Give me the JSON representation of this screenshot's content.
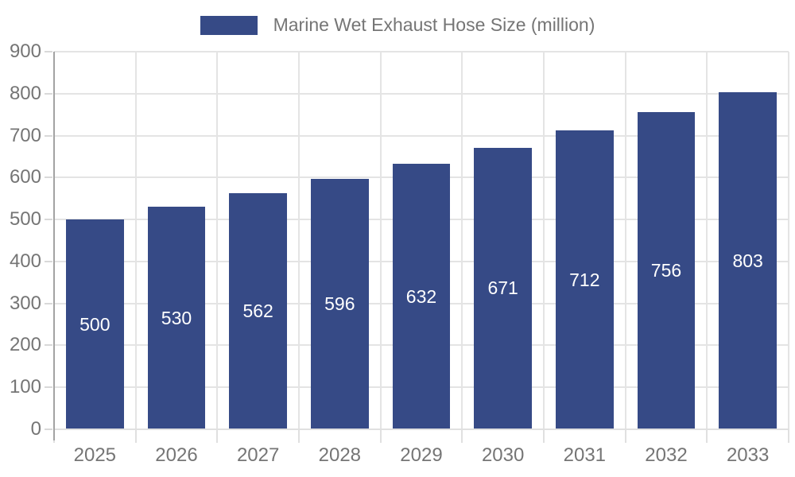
{
  "legend": {
    "label": "Marine Wet Exhaust Hose Size (million)"
  },
  "chart_data": {
    "type": "bar",
    "title": "Marine Wet Exhaust Hose Size (million)",
    "categories": [
      "2025",
      "2026",
      "2027",
      "2028",
      "2029",
      "2030",
      "2031",
      "2032",
      "2033"
    ],
    "values": [
      500,
      530,
      562,
      596,
      632,
      671,
      712,
      756,
      803
    ],
    "xlabel": "",
    "ylabel": "",
    "ylim": [
      0,
      900
    ],
    "ytick_step": 100,
    "grid": true,
    "legend_position": "top",
    "colors": {
      "bar": "#364A86",
      "value_label": "#ffffff",
      "axis_text": "#757575",
      "gridline": "#e4e4e4",
      "axis_line": "#a3a3a3",
      "background": "#ffffff"
    }
  }
}
